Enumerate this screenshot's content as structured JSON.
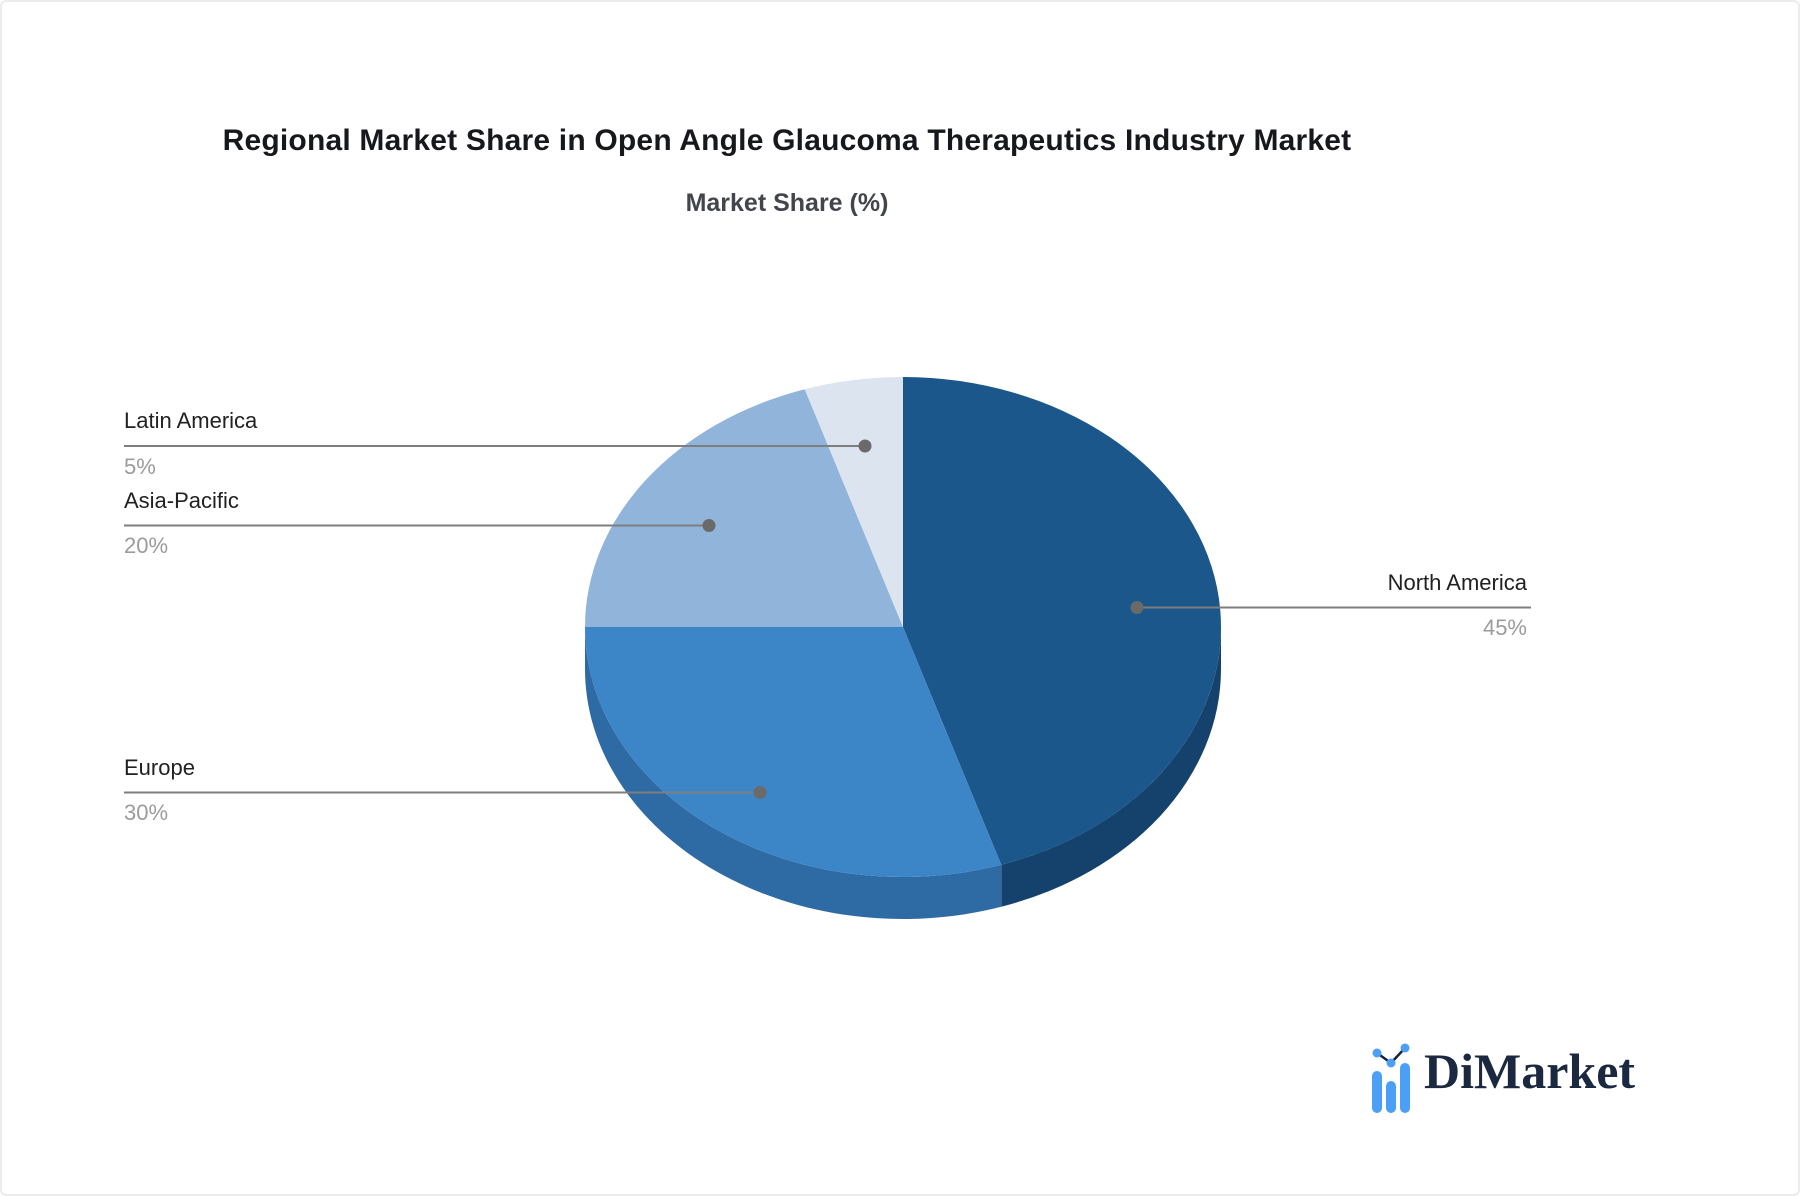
{
  "chart_data": {
    "type": "pie",
    "style": "3d",
    "title": "Regional Market Share in Open Angle Glaucoma Therapeutics Industry Market",
    "subtitle": "Market Share (%)",
    "unit": "%",
    "start_angle_deg": 0,
    "direction": "clockwise",
    "legend_position": "callout-labels",
    "categories": [
      "North America",
      "Europe",
      "Asia-Pacific",
      "Latin America"
    ],
    "values": [
      45,
      30,
      20,
      5
    ],
    "slices": [
      {
        "label": "North America",
        "value": 45,
        "display": "45%",
        "color": "#1B578B",
        "side_color": "#15426C",
        "callout_side": "right"
      },
      {
        "label": "Europe",
        "value": 30,
        "display": "30%",
        "color": "#3C86C8",
        "side_color": "#2E6BA4",
        "callout_side": "left"
      },
      {
        "label": "Asia-Pacific",
        "value": 20,
        "display": "20%",
        "color": "#91B4DB",
        "side_color": "#7FA2C9",
        "callout_side": "left"
      },
      {
        "label": "Latin America",
        "value": 5,
        "display": "5%",
        "color": "#DCE4F0",
        "side_color": "#C9D4E6",
        "callout_side": "left"
      }
    ]
  },
  "colors": {
    "background": "#FFFFFF",
    "title": "#16181C",
    "subtitle": "#42464C",
    "callout_name": "#212121",
    "callout_value": "#9B9B9B",
    "leader_line": "#7E7E7E",
    "leader_dot": "#6A6A6A",
    "logo_text": "#1B2940",
    "logo_icon": "#4BA0F6"
  },
  "logo": {
    "text": "DiMarket",
    "icon": "bar-chart-trend-icon"
  }
}
